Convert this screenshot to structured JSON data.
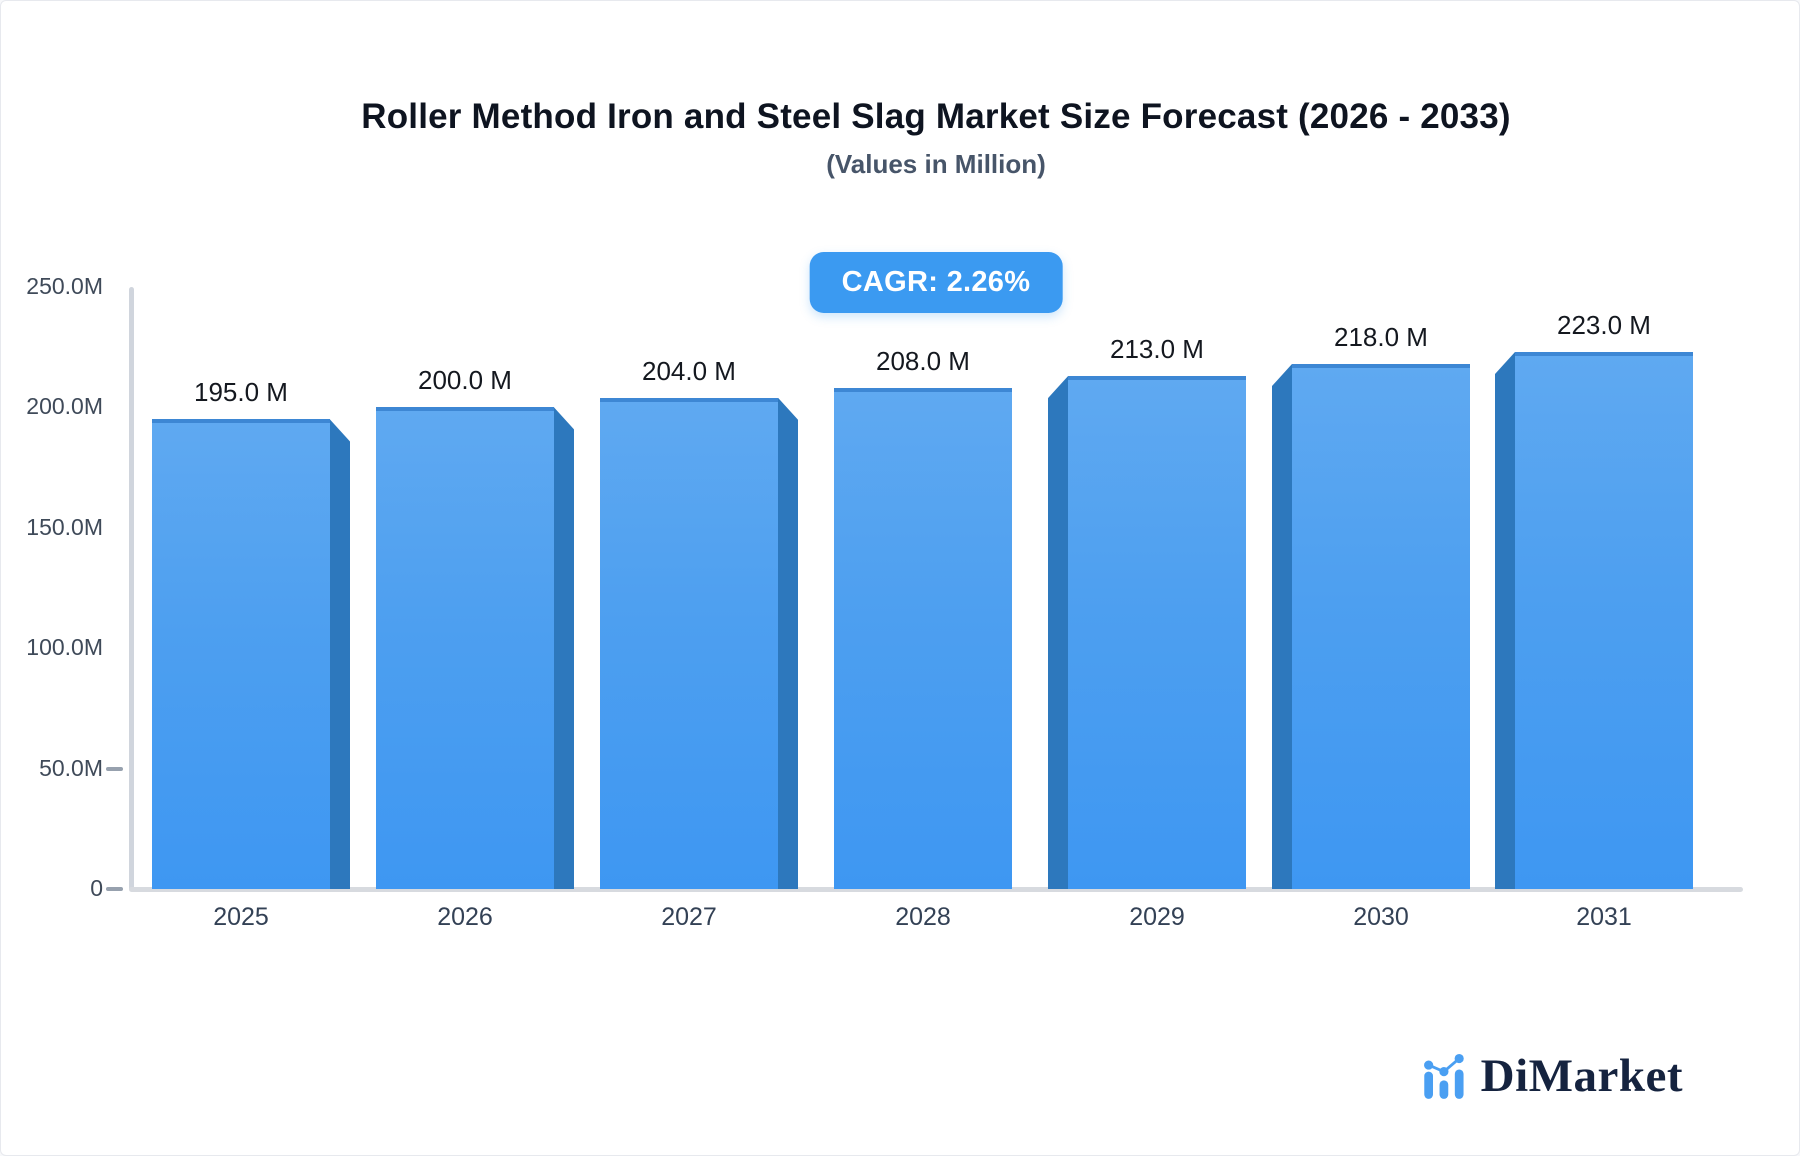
{
  "header": {
    "title": "Roller Method Iron and Steel Slag Market Size Forecast (2026 - 2033)",
    "subtitle": "(Values in Million)"
  },
  "badge": {
    "label": "CAGR: 2.26%",
    "background": "#3b9af1",
    "text_color": "#ffffff"
  },
  "chart_data": {
    "type": "bar",
    "title": "Roller Method Iron and Steel Slag Market Size Forecast (2026 - 2033)",
    "subtitle": "(Values in Million)",
    "unit": "Million",
    "cagr_percent": 2.26,
    "categories": [
      "2025",
      "2026",
      "2027",
      "2028",
      "2029",
      "2030",
      "2031"
    ],
    "values": [
      195,
      200,
      204,
      208,
      213,
      218,
      223
    ],
    "value_labels": [
      "195.0 M",
      "200.0 M",
      "204.0 M",
      "208.0 M",
      "213.0 M",
      "218.0 M",
      "223.0 M"
    ],
    "ylim": [
      0,
      250
    ],
    "y_ticks": [
      {
        "label": "250.0M",
        "value": 250,
        "dash": false
      },
      {
        "label": "200.0M",
        "value": 200,
        "dash": false
      },
      {
        "label": "150.0M",
        "value": 150,
        "dash": false
      },
      {
        "label": "100.0M",
        "value": 100,
        "dash": false
      },
      {
        "label": "50.0M",
        "value": 50,
        "dash": true
      },
      {
        "label": "0",
        "value": 0,
        "dash": true
      }
    ],
    "grid": false,
    "legend_position": "none",
    "colors": {
      "bar_top": "#5fa9f1",
      "bar_mid": "#4d9ff0",
      "bar_bottom": "#3e97f2",
      "bar_side": "#2d78bd",
      "bar_cap": "#3d87d4"
    }
  },
  "footer": {
    "brand": "DiMarket",
    "logo_icon": "bar-chart-logo-icon",
    "logo_color": "#4a9ff2",
    "brand_text_color": "#15233f"
  }
}
